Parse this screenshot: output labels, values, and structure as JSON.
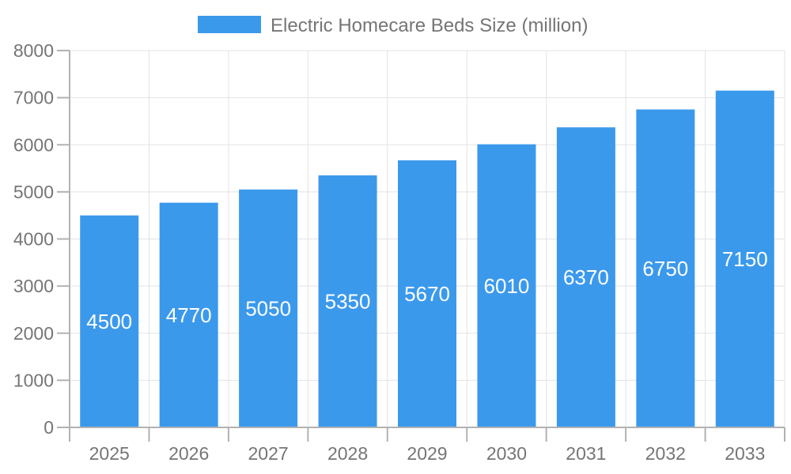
{
  "legend": {
    "label": "Electric Homecare Beds Size (million)"
  },
  "chart_data": {
    "type": "bar",
    "title": "Electric Homecare Beds Size (million)",
    "categories": [
      "2025",
      "2026",
      "2027",
      "2028",
      "2029",
      "2030",
      "2031",
      "2032",
      "2033"
    ],
    "values": [
      4500,
      4770,
      5050,
      5350,
      5670,
      6010,
      6370,
      6750,
      7150
    ],
    "value_labels": [
      "4500",
      "4770",
      "5050",
      "5350",
      "5670",
      "6010",
      "6370",
      "6750",
      "7150"
    ],
    "xlabel": "",
    "ylabel": "",
    "ylim": [
      0,
      8000
    ],
    "yticks": [
      0,
      1000,
      2000,
      3000,
      4000,
      5000,
      6000,
      7000,
      8000
    ],
    "ytick_labels": [
      "0",
      "1000",
      "2000",
      "3000",
      "4000",
      "5000",
      "6000",
      "7000",
      "8000"
    ],
    "grid": true,
    "legend_position": "top-center",
    "value_label_position": "inside-center",
    "colors": {
      "bar": "#3b99ec",
      "value_label": "#ffffff",
      "axis_text": "#757575",
      "grid_line": "#e3e3e3",
      "axis_line": "#b2b2b2"
    }
  }
}
